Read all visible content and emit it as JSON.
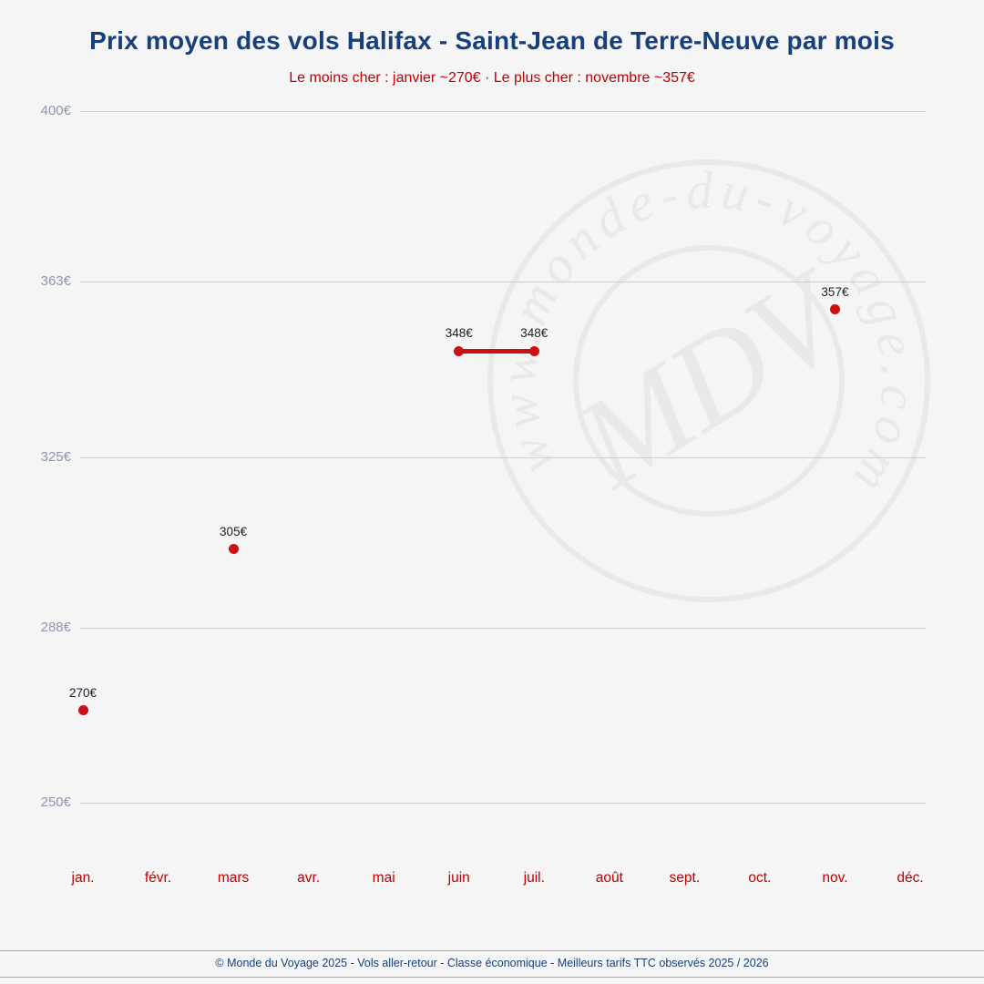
{
  "header": {
    "title": "Prix moyen des vols Halifax - Saint-Jean de Terre-Neuve par mois",
    "subtitle": "Le moins cher : janvier ~270€ · Le plus cher : novembre ~357€"
  },
  "chart_data": {
    "type": "scatter",
    "categories": [
      "jan.",
      "févr.",
      "mars",
      "avr.",
      "mai",
      "juin",
      "juil.",
      "août",
      "sept.",
      "oct.",
      "nov.",
      "déc."
    ],
    "values": [
      270,
      null,
      305,
      null,
      null,
      348,
      348,
      null,
      null,
      null,
      357,
      null
    ],
    "point_labels": [
      "270€",
      null,
      "305€",
      null,
      null,
      "348€",
      "348€",
      null,
      null,
      null,
      "357€",
      null
    ],
    "connected_segments": [
      [
        5,
        6
      ]
    ],
    "title": "Prix moyen des vols Halifax - Saint-Jean de Terre-Neuve par mois",
    "xlabel": "",
    "ylabel": "",
    "ylim": [
      250,
      400
    ],
    "yticks": [
      400,
      363,
      325,
      288,
      250
    ],
    "ytick_labels": [
      "400€",
      "363€",
      "325€",
      "288€",
      "250€"
    ],
    "grid": true,
    "legend": "none",
    "cheapest": {
      "month": "janvier",
      "value": 270
    },
    "most_expensive": {
      "month": "novembre",
      "value": 357
    }
  },
  "colors": {
    "title": "#17407b",
    "accent_red": "#c00000",
    "point": "#cc1111",
    "grid": "#c6cedb",
    "ytick_text": "#8d98a8",
    "point_label_text": "#1d1d28",
    "background": "#f5f5f6",
    "footer_text": "#17407b",
    "watermark": "#e9e9e9"
  },
  "watermark": {
    "circle_text": "www.monde-du-voyage.com",
    "center_text": "MDV"
  },
  "footer": {
    "text": "© Monde du Voyage 2025 - Vols aller-retour - Classe économique - Meilleurs tarifs TTC observés 2025 / 2026"
  }
}
